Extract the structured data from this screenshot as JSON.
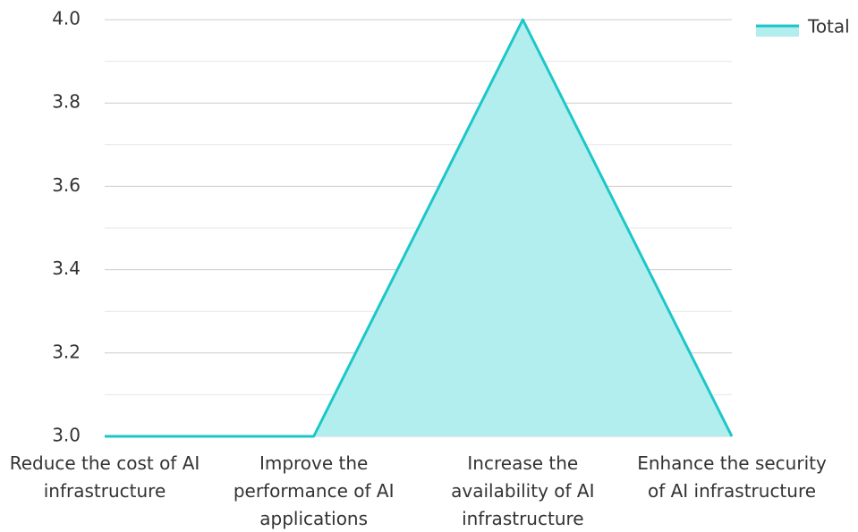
{
  "chart_data": {
    "type": "area",
    "categories": [
      "Reduce the cost of AI infrastructure",
      "Improve the performance of AI applications",
      "Increase the availability of AI infrastructure",
      "Enhance the security of AI infrastructure"
    ],
    "series": [
      {
        "name": "Total",
        "color": "#1dc6c9",
        "fill": "#b2eeee",
        "values": [
          3,
          3,
          4,
          3
        ]
      }
    ],
    "ylim": [
      3,
      4
    ],
    "yticks": [
      {
        "value": 3,
        "label": "3.0"
      },
      3.2,
      3.4,
      3.6,
      3.8,
      {
        "value": 4,
        "label": "4.0"
      }
    ],
    "minor_yticks": [
      3.1,
      3.3,
      3.5,
      3.7,
      3.9
    ],
    "grid": true,
    "legend": "top-right"
  }
}
